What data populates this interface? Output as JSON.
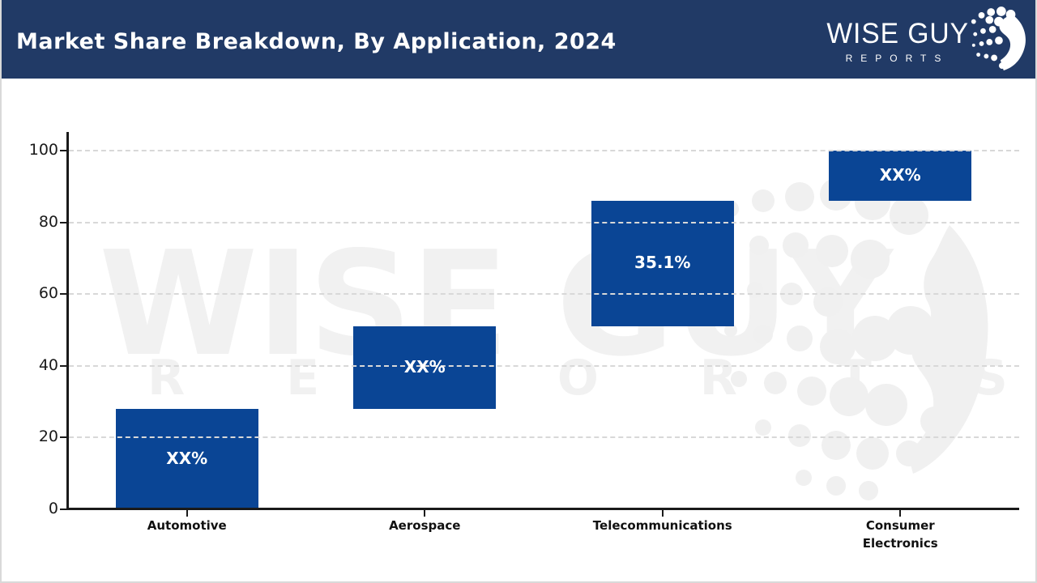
{
  "header": {
    "title": "Market Share Breakdown, By Application, 2024",
    "logo_line1": "WISE GUY",
    "logo_line2": "REPORTS"
  },
  "watermark": {
    "line1": "WISE GUY",
    "line2": "R E P O R T S"
  },
  "colors": {
    "header_bg": "#213A66",
    "bar": "#0A4595",
    "bar_label": "#ffffff",
    "grid": "#d8d8d8",
    "axis": "#1a1a1a",
    "watermark": "#f1f1f1",
    "frame_border": "#d9d9d9"
  },
  "chart_data": {
    "type": "bar",
    "subtype": "waterfall-floating-bars",
    "title": "Market Share Breakdown, By Application, 2024",
    "xlabel": "",
    "ylabel": "",
    "ylim": [
      0,
      100
    ],
    "yticks": [
      0,
      20,
      40,
      60,
      80,
      100
    ],
    "grid": "horizontal-dashed, drawn over bars",
    "legend": "none",
    "categories": [
      "Automotive",
      "Aerospace",
      "Telecommunications",
      "Consumer Electronics"
    ],
    "category_tick_lines": [
      [
        "Automotive"
      ],
      [
        "Aerospace"
      ],
      [
        "Telecommunications"
      ],
      [
        "Consumer",
        "Electronics"
      ]
    ],
    "series": [
      {
        "name": "Market Share %",
        "segments": [
          {
            "category": "Automotive",
            "start": 0,
            "end": 28,
            "label": "XX%"
          },
          {
            "category": "Aerospace",
            "start": 28,
            "end": 51,
            "label": "XX%"
          },
          {
            "category": "Telecommunications",
            "start": 51,
            "end": 86.1,
            "label": "35.1%"
          },
          {
            "category": "Consumer Electronics",
            "start": 86.1,
            "end": 100,
            "label": "XX%"
          }
        ]
      }
    ]
  }
}
